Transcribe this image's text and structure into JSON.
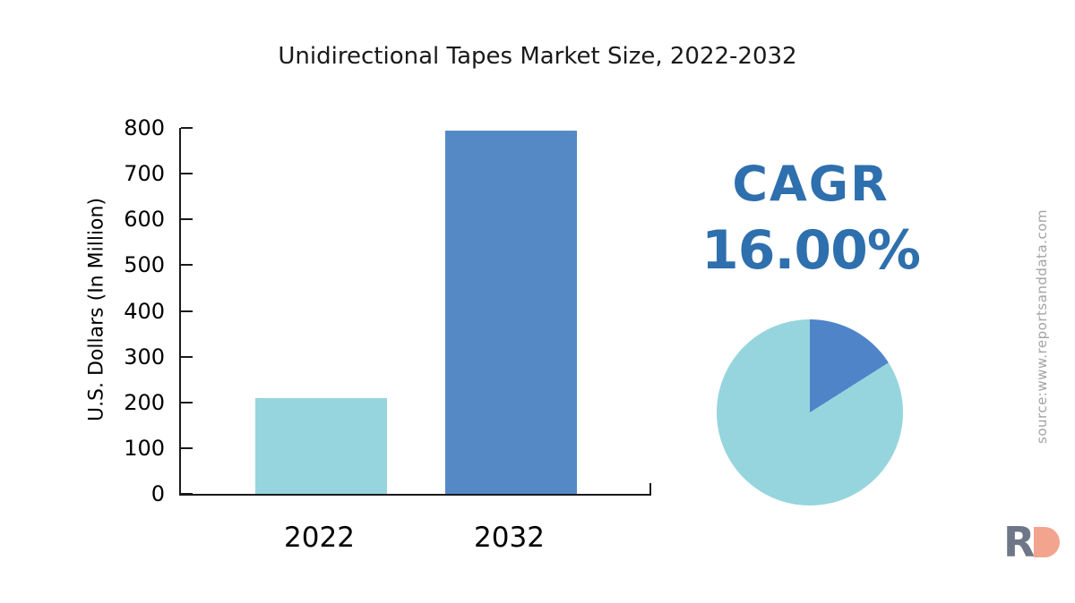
{
  "title": "Unidirectional Tapes Market Size, 2022-2032",
  "chart_data": {
    "type": "bar",
    "title": "Unidirectional Tapes Market Size, 2022-2032",
    "categories": [
      "2022",
      "2032"
    ],
    "values": [
      210,
      795
    ],
    "xlabel": "",
    "ylabel": "U.S. Dollars (In Million)",
    "ylim": [
      0,
      800
    ],
    "yticks": [
      0,
      100,
      200,
      300,
      400,
      500,
      600,
      700,
      800
    ],
    "bar_colors": [
      "#96d5de",
      "#5589c6"
    ],
    "grid": false,
    "legend": "none"
  },
  "cagr": {
    "label": "CAGR",
    "value": "16.00%",
    "percent": 16,
    "color": "#2e6fad"
  },
  "pie": {
    "percent": 16,
    "slice_color": "#4f85c8",
    "remainder_color": "#96d5de"
  },
  "source": {
    "text": "source:www.reportsanddata.com",
    "color": "#a3a3a3"
  },
  "logo": {
    "letter": "R",
    "letter_color": "#6d7787",
    "d_color": "#f2a48e"
  },
  "colors": {
    "axis": "#1a1a1a",
    "background": "#ffffff"
  }
}
